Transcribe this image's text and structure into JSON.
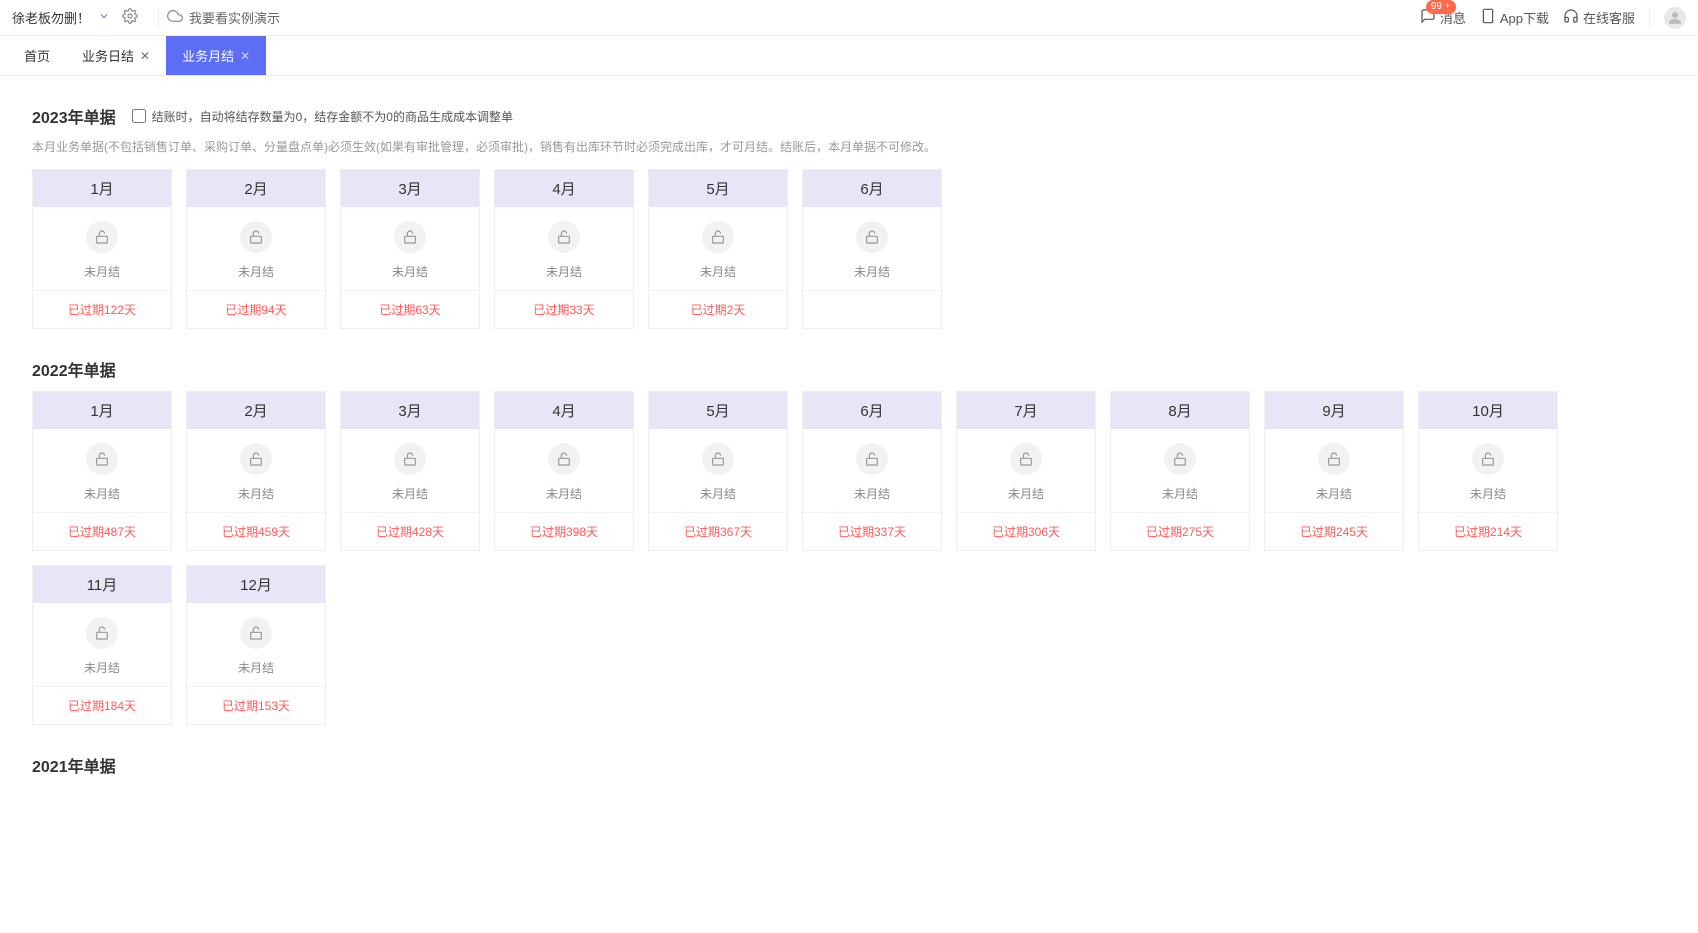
{
  "topbar": {
    "org_name": "徐老板勿删！",
    "demo_link": "我要看实例演示",
    "messages_label": "消息",
    "messages_badge": "99 +",
    "app_download": "App下载",
    "support": "在线客服"
  },
  "tabs": [
    {
      "label": "首页",
      "closable": false,
      "active": false
    },
    {
      "label": "业务日结",
      "closable": true,
      "active": false
    },
    {
      "label": "业务月结",
      "closable": true,
      "active": true
    }
  ],
  "checkbox_label": "结账时，自动将结存数量为0，结存金额不为0的商品生成成本调整单",
  "helper": "本月业务单据(不包括销售订单、采购订单、分量盘点单)必须生效(如果有审批管理，必须审批)，销售有出库环节时必须完成出库，才可月结。结账后，本月单据不可修改。",
  "status_unclosed": "未月结",
  "years": [
    {
      "title": "2023年单据",
      "show_checkbox": true,
      "show_helper": true,
      "months": [
        {
          "name": "1月",
          "status": "未月结",
          "overdue": "已过期122天"
        },
        {
          "name": "2月",
          "status": "未月结",
          "overdue": "已过期94天"
        },
        {
          "name": "3月",
          "status": "未月结",
          "overdue": "已过期63天"
        },
        {
          "name": "4月",
          "status": "未月结",
          "overdue": "已过期33天"
        },
        {
          "name": "5月",
          "status": "未月结",
          "overdue": "已过期2天"
        },
        {
          "name": "6月",
          "status": "未月结",
          "overdue": ""
        }
      ]
    },
    {
      "title": "2022年单据",
      "show_checkbox": false,
      "show_helper": false,
      "months": [
        {
          "name": "1月",
          "status": "未月结",
          "overdue": "已过期487天"
        },
        {
          "name": "2月",
          "status": "未月结",
          "overdue": "已过期459天"
        },
        {
          "name": "3月",
          "status": "未月结",
          "overdue": "已过期428天"
        },
        {
          "name": "4月",
          "status": "未月结",
          "overdue": "已过期398天"
        },
        {
          "name": "5月",
          "status": "未月结",
          "overdue": "已过期367天"
        },
        {
          "name": "6月",
          "status": "未月结",
          "overdue": "已过期337天"
        },
        {
          "name": "7月",
          "status": "未月结",
          "overdue": "已过期306天"
        },
        {
          "name": "8月",
          "status": "未月结",
          "overdue": "已过期275天"
        },
        {
          "name": "9月",
          "status": "未月结",
          "overdue": "已过期245天"
        },
        {
          "name": "10月",
          "status": "未月结",
          "overdue": "已过期214天"
        },
        {
          "name": "11月",
          "status": "未月结",
          "overdue": "已过期184天"
        },
        {
          "name": "12月",
          "status": "未月结",
          "overdue": "已过期153天"
        }
      ]
    },
    {
      "title": "2021年单据",
      "show_checkbox": false,
      "show_helper": false,
      "months": []
    }
  ],
  "colors": {
    "accent": "#5b6ef5",
    "month_header_bg": "#e6e6f7",
    "overdue_text": "#ff5a5a",
    "badge_bg": "#ff6a4d"
  }
}
